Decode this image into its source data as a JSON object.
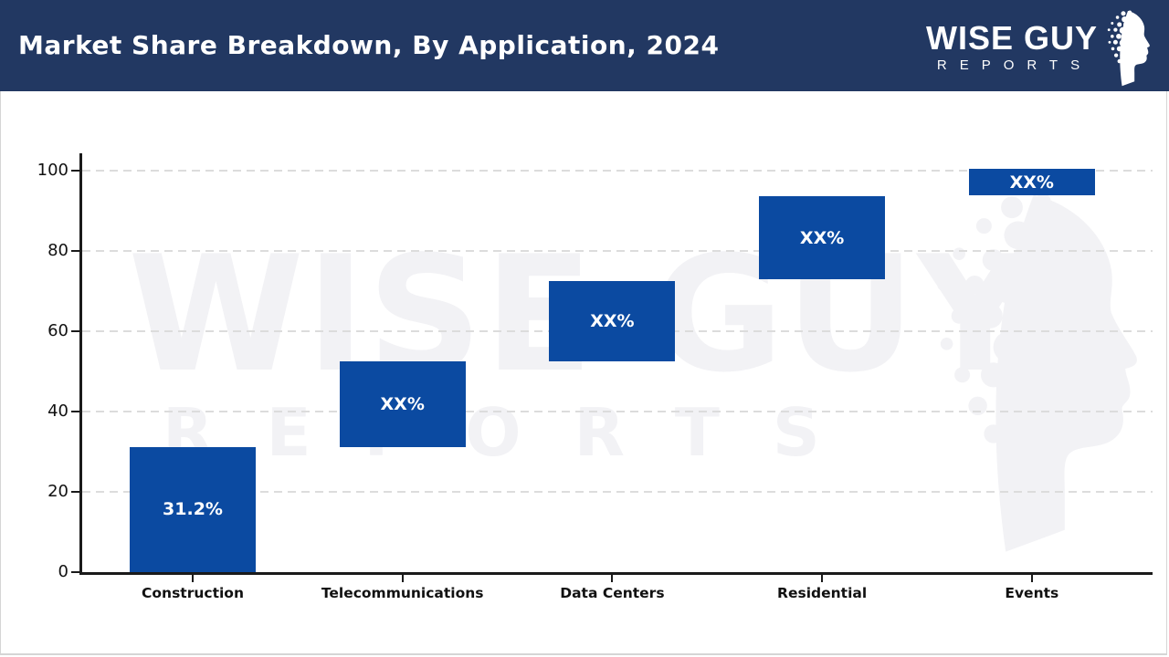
{
  "header": {
    "title": "Market Share Breakdown, By Application, 2024",
    "bg_color": "#223862",
    "logo": {
      "brand": "WISE GUY",
      "sub": "REPORTS"
    }
  },
  "watermark": {
    "line1": "WISE GUY",
    "line2": "REPORTS"
  },
  "chart_data": {
    "type": "bar",
    "subtype": "waterfall",
    "title": "Market Share Breakdown, By Application, 2024",
    "xlabel": "",
    "ylabel": "",
    "categories": [
      "Construction",
      "Telecommunications",
      "Data Centers",
      "Residential",
      "Events"
    ],
    "segments": [
      {
        "category": "Construction",
        "start": 0,
        "end": 31.2,
        "label": "31.2%"
      },
      {
        "category": "Telecommunications",
        "start": 31.2,
        "end": 52.4,
        "label": "XX%"
      },
      {
        "category": "Data Centers",
        "start": 52.4,
        "end": 72.6,
        "label": "XX%"
      },
      {
        "category": "Residential",
        "start": 72.9,
        "end": 93.6,
        "label": "XX%"
      },
      {
        "category": "Events",
        "start": 93.9,
        "end": 100.4,
        "label": "XX%"
      }
    ],
    "y_ticks": [
      0,
      20,
      40,
      60,
      80,
      100
    ],
    "ylim": [
      0,
      104.3
    ],
    "grid": "horizontal-dashed",
    "legend": "none",
    "bar_color": "#0b4aa1",
    "bar_label_color": "#ffffff",
    "axis_color": "#1a1a1a"
  }
}
